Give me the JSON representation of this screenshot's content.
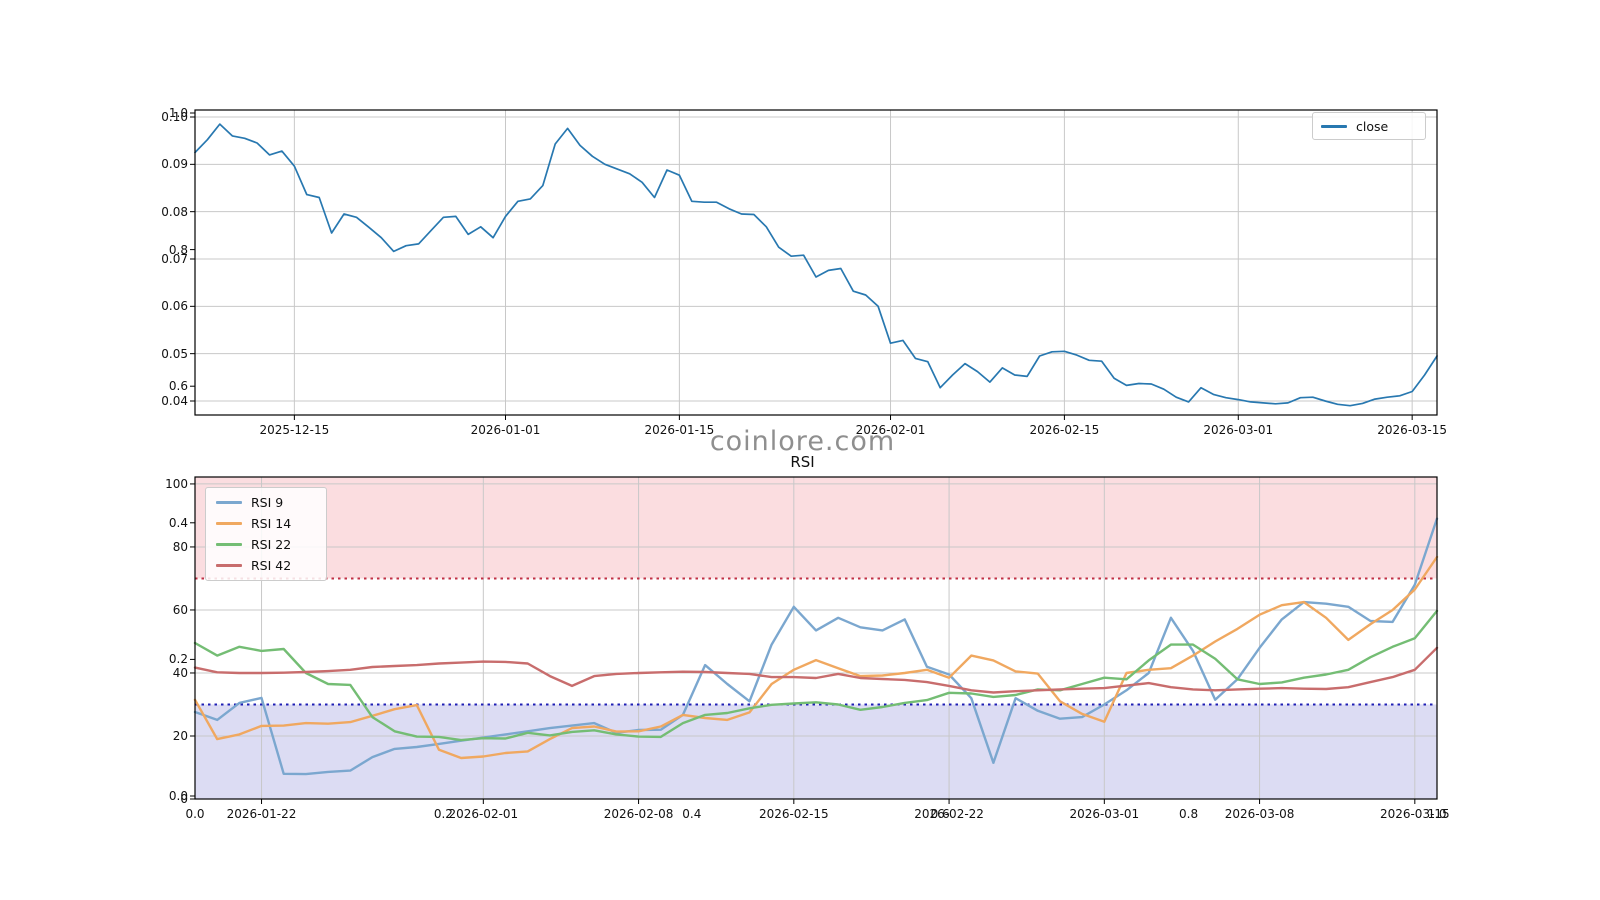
{
  "watermark": "coinlore.com",
  "subplot2_title": "RSI",
  "colors": {
    "grid": "#c8c8c8",
    "spine": "#000000",
    "overbought_band": "#fbdde0",
    "oversold_band": "#dcdcf3",
    "overbought_line": "#c03045",
    "oversold_line": "#1e1eb4",
    "watermark": "#8f8f8f"
  },
  "ghost_axis": {
    "x_labels": [
      "0.0",
      "0.2",
      "0.4",
      "0.6",
      "0.8",
      "1.0"
    ],
    "y_labels": [
      "1.0",
      "0.8",
      "0.6",
      "0.4",
      "0.2",
      "0.0"
    ]
  },
  "chart_data": [
    {
      "type": "line",
      "title": "",
      "legend_position": "top-right",
      "grid": true,
      "ylim": [
        0.03704,
        0.10148
      ],
      "y_tick_labels": [
        "0.10",
        "0.09",
        "0.08",
        "0.07",
        "0.06",
        "0.05",
        "0.04"
      ],
      "y_tick_values": [
        0.1,
        0.09,
        0.08,
        0.07,
        0.06,
        0.05,
        0.04
      ],
      "x_tick_labels": [
        "2025-12-15",
        "2026-01-01",
        "2026-01-15",
        "2026-02-01",
        "2026-02-15",
        "2026-03-01",
        "2026-03-15"
      ],
      "x_tick_index": [
        8,
        25,
        39,
        56,
        70,
        84,
        98
      ],
      "series": [
        {
          "name": "close",
          "color": "#2878b0",
          "width": 1.7,
          "values": [
            0.0925,
            0.0952,
            0.0985,
            0.096,
            0.0955,
            0.0945,
            0.092,
            0.0928,
            0.0896,
            0.0836,
            0.083,
            0.0755,
            0.0795,
            0.0788,
            0.0767,
            0.0745,
            0.0716,
            0.0728,
            0.0732,
            0.076,
            0.0788,
            0.079,
            0.0752,
            0.0768,
            0.0745,
            0.079,
            0.0822,
            0.0827,
            0.0855,
            0.0943,
            0.0976,
            0.094,
            0.0917,
            0.09,
            0.089,
            0.088,
            0.0862,
            0.083,
            0.0888,
            0.0877,
            0.0822,
            0.082,
            0.082,
            0.0806,
            0.0795,
            0.0794,
            0.0768,
            0.0725,
            0.0706,
            0.0708,
            0.0662,
            0.0676,
            0.068,
            0.0632,
            0.0624,
            0.06,
            0.0522,
            0.0528,
            0.049,
            0.0483,
            0.0428,
            0.0455,
            0.0479,
            0.0462,
            0.044,
            0.047,
            0.0455,
            0.0452,
            0.0495,
            0.0504,
            0.0505,
            0.0497,
            0.0486,
            0.0484,
            0.0448,
            0.0433,
            0.0437,
            0.0436,
            0.0425,
            0.0408,
            0.0398,
            0.0428,
            0.0414,
            0.0407,
            0.0403,
            0.0398,
            0.0396,
            0.0394,
            0.0396,
            0.0407,
            0.0408,
            0.04,
            0.0393,
            0.039,
            0.0395,
            0.0404,
            0.0408,
            0.0411,
            0.042,
            0.0455,
            0.0495
          ]
        }
      ]
    },
    {
      "type": "line",
      "title": "RSI",
      "legend_position": "top-left",
      "grid": true,
      "ylim": [
        0,
        102.2
      ],
      "y_tick_labels": [
        "100",
        "80",
        "60",
        "40",
        "20",
        "0"
      ],
      "y_tick_values": [
        100,
        80,
        60,
        40,
        20,
        0
      ],
      "x_tick_labels": [
        "2026-01-22",
        "2026-02-01",
        "2026-02-08",
        "2026-02-15",
        "2026-02-22",
        "2026-03-01",
        "2026-03-08",
        "2026-03-15"
      ],
      "x_tick_index": [
        3,
        13,
        20,
        27,
        34,
        41,
        48,
        55
      ],
      "bands": [
        {
          "from": 70,
          "to": 102.2,
          "color": "#fbdde0",
          "name": "overbought"
        },
        {
          "from": 0,
          "to": 30,
          "color": "#dcdcf3",
          "name": "oversold"
        }
      ],
      "hlines": [
        {
          "value": 70,
          "color": "#c03045",
          "style": "dotted"
        },
        {
          "value": 30,
          "color": "#1e1eb4",
          "style": "dotted"
        }
      ],
      "series": [
        {
          "name": "RSI 9",
          "color": "#7ba7cf",
          "width": 2.4,
          "values": [
            27.6,
            25.1,
            30.5,
            32.1,
            8.0,
            7.9,
            8.6,
            9.0,
            13.3,
            15.9,
            16.5,
            17.5,
            18.5,
            19.5,
            20.5,
            21.5,
            22.5,
            23.3,
            24.1,
            21.0,
            21.9,
            22.0,
            26.7,
            42.5,
            36.5,
            31.0,
            49.0,
            61.0,
            53.5,
            57.5,
            54.5,
            53.5,
            57.0,
            42.0,
            39.5,
            32.0,
            11.5,
            32.0,
            28.0,
            25.5,
            26.0,
            30.0,
            34.5,
            40.0,
            57.5,
            47.0,
            31.5,
            38.0,
            48.0,
            57.0,
            62.5,
            62.0,
            61.0,
            56.5,
            56.2,
            68.0,
            89.0
          ]
        },
        {
          "name": "RSI 14",
          "color": "#f0a860",
          "width": 2.4,
          "values": [
            31.5,
            19.0,
            20.5,
            23.2,
            23.3,
            24.1,
            23.9,
            24.4,
            26.4,
            28.5,
            29.8,
            15.6,
            13.0,
            13.5,
            14.6,
            15.1,
            19.0,
            22.5,
            23.0,
            21.4,
            21.5,
            23.0,
            26.7,
            25.7,
            25.1,
            27.5,
            36.5,
            41.0,
            44.1,
            41.5,
            39.0,
            39.2,
            40.0,
            41.0,
            38.5,
            45.5,
            44.0,
            40.5,
            39.8,
            31.0,
            27.0,
            24.5,
            40.0,
            41.0,
            41.5,
            45.5,
            50.0,
            54.0,
            58.5,
            61.5,
            62.5,
            57.5,
            50.5,
            55.5,
            60.0,
            66.5,
            76.8
          ]
        },
        {
          "name": "RSI 22",
          "color": "#74bd74",
          "width": 2.4,
          "values": [
            49.5,
            45.5,
            48.3,
            47.0,
            47.6,
            40.0,
            36.5,
            36.2,
            26.0,
            21.5,
            19.8,
            19.7,
            18.7,
            19.3,
            19.2,
            21.0,
            20.2,
            21.3,
            21.8,
            20.5,
            19.8,
            19.7,
            24.1,
            26.7,
            27.3,
            28.8,
            29.9,
            30.3,
            30.7,
            30.0,
            28.3,
            29.2,
            30.5,
            31.4,
            33.7,
            33.5,
            32.4,
            33.0,
            34.8,
            34.5,
            36.5,
            38.5,
            38.0,
            44.0,
            49.0,
            49.0,
            44.5,
            38.0,
            36.5,
            37.0,
            38.5,
            39.5,
            41.0,
            45.0,
            48.3,
            51.0,
            59.7
          ]
        },
        {
          "name": "RSI 42",
          "color": "#c86d6d",
          "width": 2.4,
          "values": [
            41.7,
            40.2,
            40.0,
            40.0,
            40.1,
            40.3,
            40.6,
            41.0,
            41.9,
            42.2,
            42.5,
            43.0,
            43.3,
            43.6,
            43.5,
            43.0,
            39.0,
            35.9,
            39.0,
            39.7,
            40.0,
            40.2,
            40.4,
            40.3,
            40.0,
            39.7,
            38.7,
            38.7,
            38.4,
            39.7,
            38.4,
            38.1,
            37.8,
            37.1,
            35.9,
            34.5,
            33.8,
            34.2,
            34.5,
            34.8,
            35.0,
            35.2,
            36.0,
            36.8,
            35.5,
            34.8,
            34.5,
            34.8,
            35.0,
            35.2,
            35.0,
            34.9,
            35.5,
            37.1,
            38.7,
            41.0,
            48.0
          ]
        }
      ]
    }
  ]
}
